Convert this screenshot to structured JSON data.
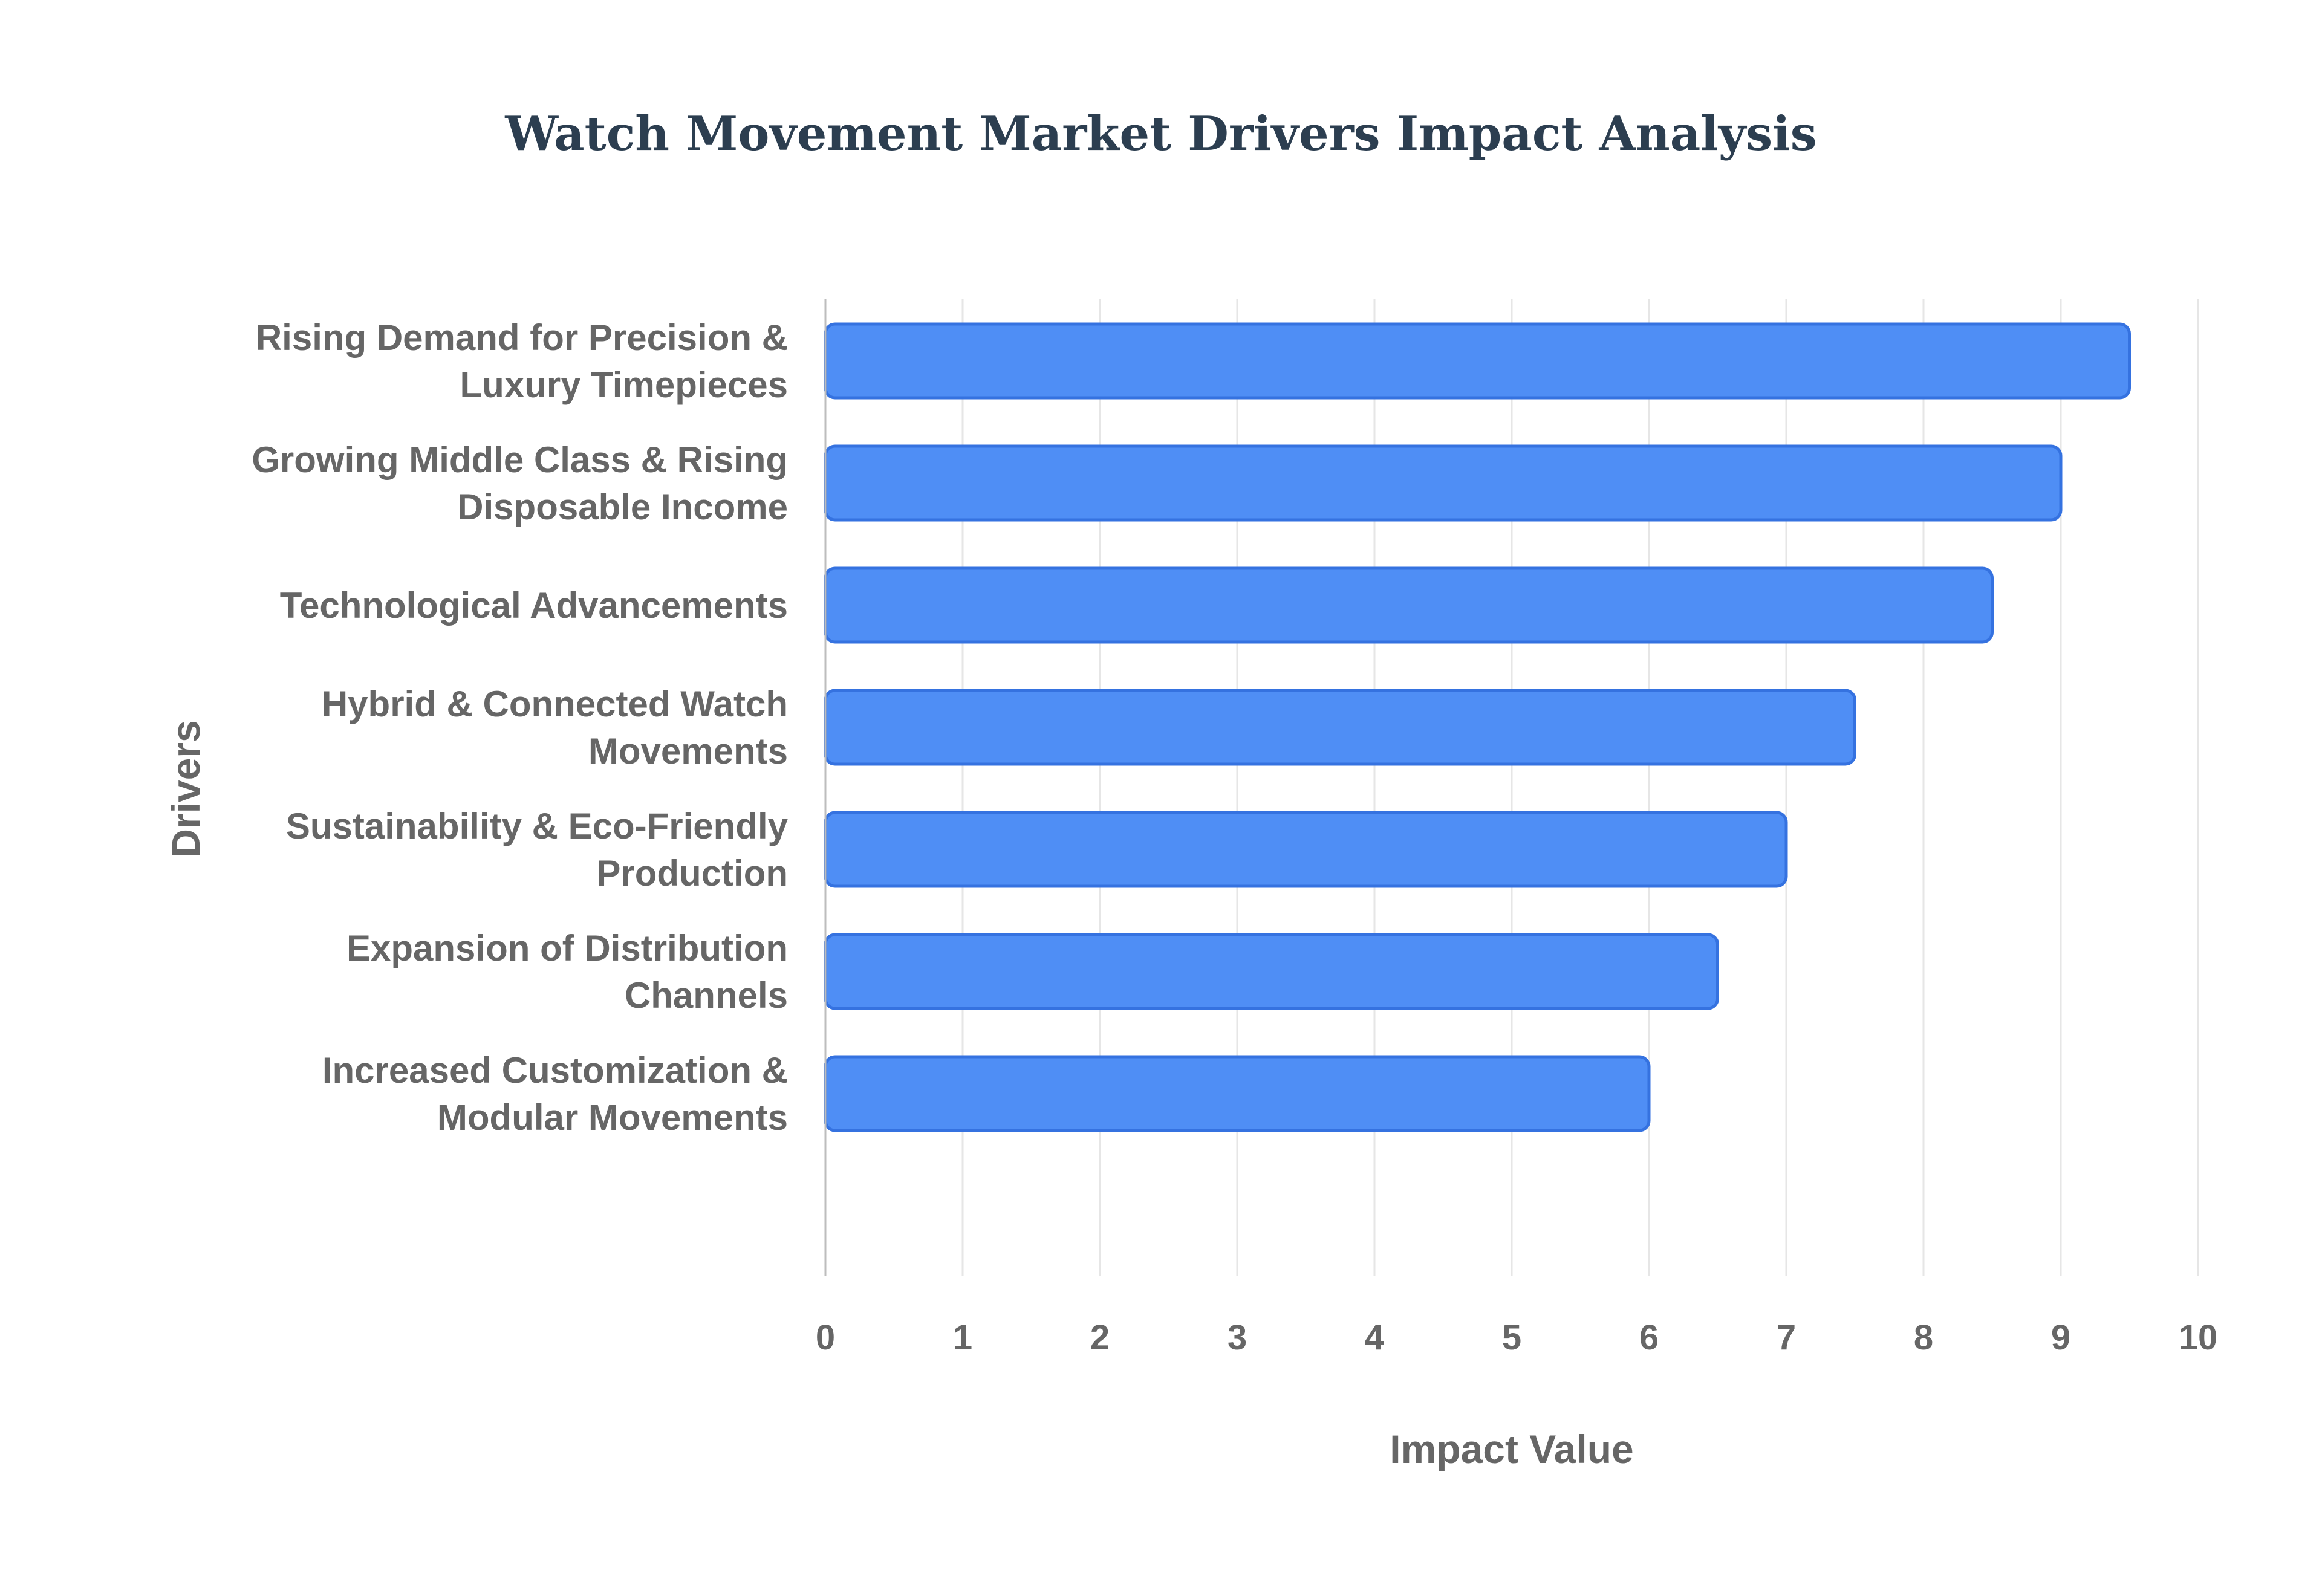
{
  "chart_data": {
    "type": "bar",
    "orientation": "horizontal",
    "title": "Watch Movement Market Drivers Impact Analysis",
    "xlabel": "Impact Value",
    "ylabel": "Drivers",
    "xlim": [
      0,
      10
    ],
    "xticks": [
      "0",
      "1",
      "2",
      "3",
      "4",
      "5",
      "6",
      "7",
      "8",
      "9",
      "10"
    ],
    "grid": true,
    "legend": "none",
    "categories": [
      [
        "Rising Demand for Precision &",
        "Luxury Timepieces"
      ],
      [
        "Growing Middle Class & Rising",
        "Disposable Income"
      ],
      [
        "Technological Advancements"
      ],
      [
        "Hybrid & Connected Watch",
        "Movements"
      ],
      [
        "Sustainability & Eco-Friendly",
        "Production"
      ],
      [
        "Expansion of Distribution",
        "Channels"
      ],
      [
        "Increased Customization &",
        "Modular Movements"
      ]
    ],
    "values": [
      9.5,
      9.0,
      8.5,
      7.5,
      7.0,
      6.5,
      6.0
    ]
  },
  "colors": {
    "bar_fill": "#4f8ef5",
    "bar_stroke": "#3572e0",
    "grid": "#e6e6e6",
    "axis": "#bdbdbd",
    "label_text": "#666666",
    "title_text": "#2c3e50"
  }
}
